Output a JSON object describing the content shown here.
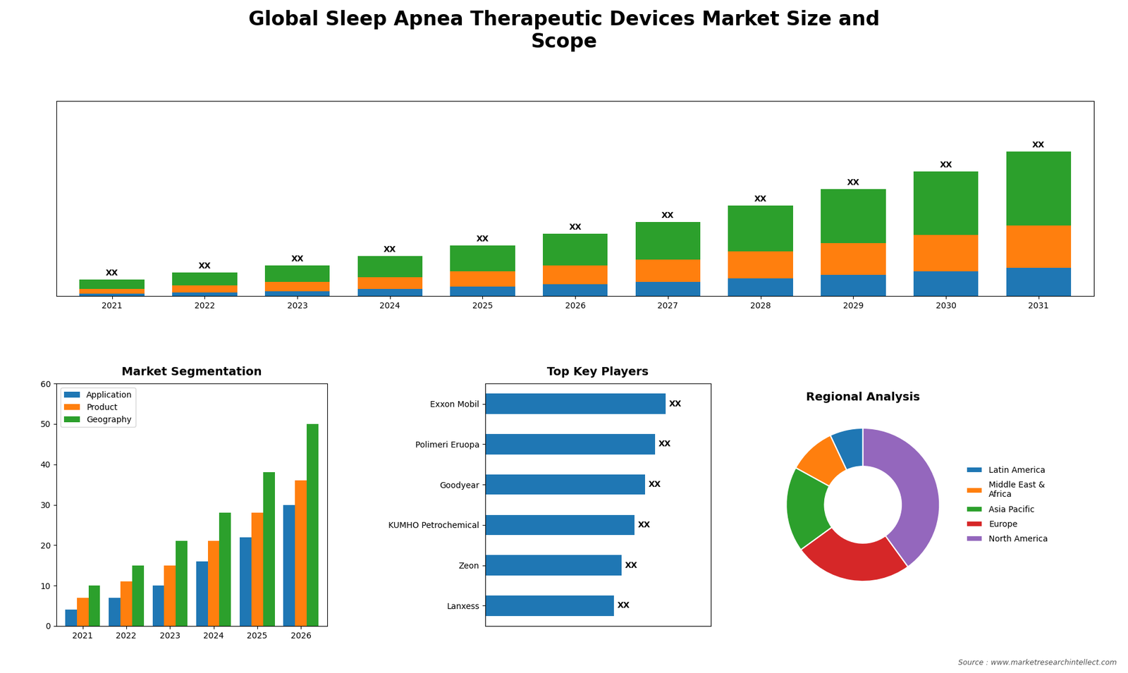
{
  "title": "Global Sleep Apnea Therapeutic Devices Market Size and\nScope",
  "annotations": [
    "Source : www.marketresearchintellect.com"
  ],
  "chart_data": [
    {
      "type": "bar",
      "stacked": true,
      "categories": [
        "2021",
        "2022",
        "2023",
        "2024",
        "2025",
        "2026",
        "2027",
        "2028",
        "2029",
        "2030",
        "2031"
      ],
      "series": [
        {
          "values": [
            0.2,
            0.3,
            0.4,
            0.6,
            0.8,
            1.0,
            1.2,
            1.5,
            1.8,
            2.1,
            2.4
          ]
        },
        {
          "values": [
            0.4,
            0.6,
            0.8,
            1.0,
            1.3,
            1.6,
            1.9,
            2.3,
            2.7,
            3.1,
            3.6
          ]
        },
        {
          "values": [
            0.8,
            1.1,
            1.4,
            1.8,
            2.2,
            2.7,
            3.2,
            3.9,
            4.6,
            5.4,
            6.3
          ],
          "value_labels": [
            "XX",
            "XX",
            "XX",
            "XX",
            "XX",
            "XX",
            "XX",
            "XX",
            "XX",
            "XX",
            "XX"
          ]
        }
      ],
      "ylim": [
        0,
        16.605
      ],
      "yticks": [],
      "tick_labels": "x"
    },
    {
      "type": "bar",
      "title": "Market Segmentation",
      "categories": [
        "2021",
        "2022",
        "2023",
        "2024",
        "2025",
        "2026"
      ],
      "series": [
        {
          "name": "Application",
          "values": [
            4,
            7,
            10,
            16,
            22,
            30
          ]
        },
        {
          "name": "Product",
          "values": [
            7,
            11,
            15,
            21,
            28,
            36
          ]
        },
        {
          "name": "Geography",
          "values": [
            10,
            15,
            21,
            28,
            38,
            50
          ]
        }
      ],
      "ylim": [
        0,
        60
      ],
      "yticks": [
        0,
        10,
        20,
        30,
        40,
        50,
        60
      ],
      "legend": "upper left"
    },
    {
      "type": "bar",
      "orientation": "horizontal",
      "title": "Top Key Players",
      "categories": [
        "Exxon Mobil",
        "Polimeri Eruopa",
        "Goodyear",
        "KUMHO Petrochemical",
        "Zeon",
        "Lanxess"
      ],
      "values": [
        7.0,
        6.6,
        6.2,
        5.8,
        5.3,
        5.0
      ],
      "value_labels": [
        "XX",
        "XX",
        "XX",
        "XX",
        "XX",
        "XX"
      ],
      "xlim": [
        0,
        8.75
      ],
      "xticks": [],
      "tick_labels": "y"
    },
    {
      "type": "pie",
      "title": "Regional Analysis",
      "categories": [
        "Latin America",
        "Middle East &\nAfrica",
        "Asia Pacific",
        "Europe",
        "North America"
      ],
      "values": [
        7,
        10,
        18,
        25,
        40
      ],
      "legend": "center left"
    }
  ]
}
